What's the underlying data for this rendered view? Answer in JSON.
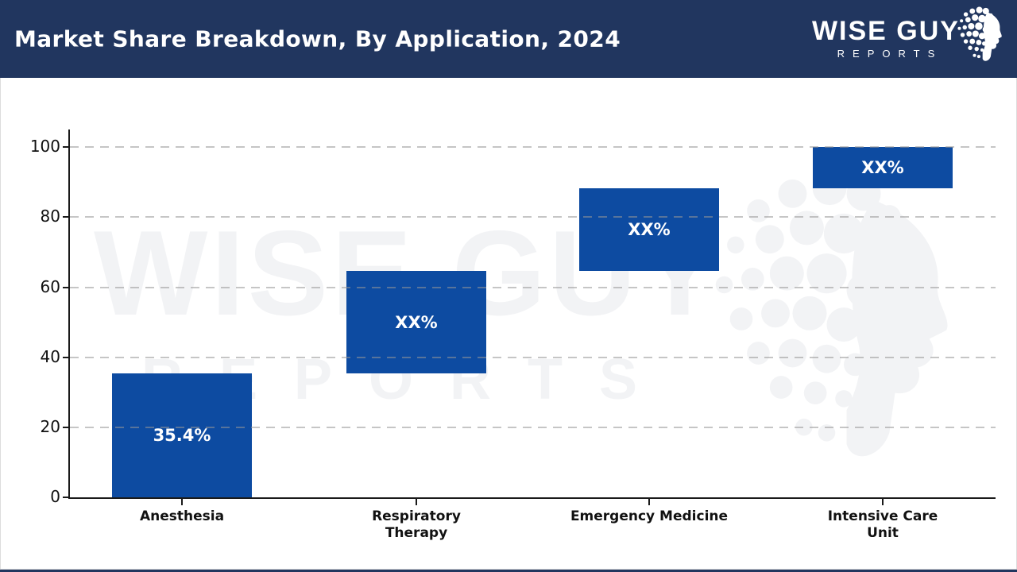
{
  "header": {
    "title": "Market Share Breakdown, By Application, 2024",
    "logo": {
      "line1": "WISE GUY",
      "line2": "REPORTS"
    }
  },
  "watermark": {
    "line1": "WISE GUY",
    "line2": "REPORTS"
  },
  "chart_data": {
    "type": "bar",
    "subtype": "waterfall",
    "title": "Market Share Breakdown, By Application, 2024",
    "categories": [
      "Anesthesia",
      "Respiratory Therapy",
      "Emergency Medicine",
      "Intensive Care Unit"
    ],
    "category_label_lines": [
      [
        "Anesthesia"
      ],
      [
        "Respiratory",
        "Therapy"
      ],
      [
        "Emergency Medicine"
      ],
      [
        "Intensive Care",
        "Unit"
      ]
    ],
    "segments": [
      {
        "category": "Anesthesia",
        "start": 0,
        "end": 35.4,
        "label": "35.4%"
      },
      {
        "category": "Respiratory Therapy",
        "start": 35.4,
        "end": 64.6,
        "label": "XX%"
      },
      {
        "category": "Emergency Medicine",
        "start": 64.6,
        "end": 88.2,
        "label": "XX%"
      },
      {
        "category": "Intensive Care Unit",
        "start": 88.2,
        "end": 100,
        "label": "XX%"
      }
    ],
    "yticks": [
      0,
      20,
      40,
      60,
      80,
      100
    ],
    "ylim": [
      0,
      105
    ],
    "xlabel": "",
    "ylabel": "",
    "legend": "none",
    "grid": "horizontal-dashed",
    "colors": {
      "bar": "#0d4ba1",
      "bar_label": "#ffffff",
      "axis": "#1a1a1a",
      "grid_line": "#cccccc",
      "header_bg": "#21365f",
      "watermark": "#f2f3f5"
    }
  }
}
